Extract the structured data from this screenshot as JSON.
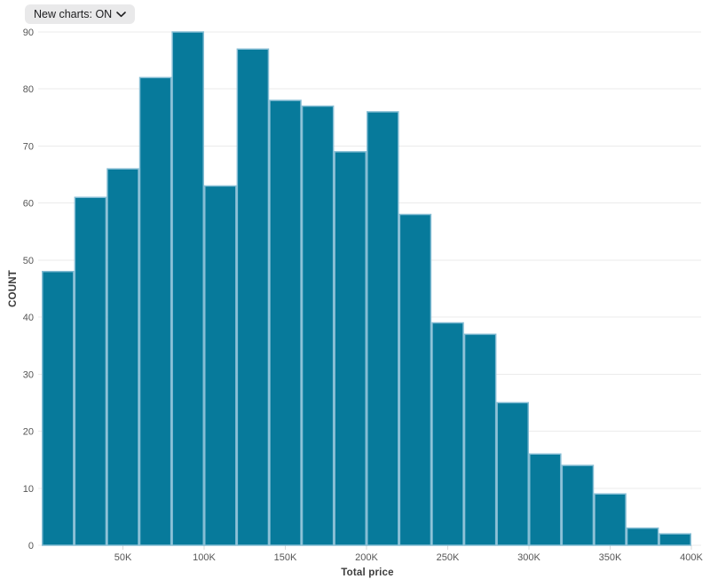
{
  "controls": {
    "new_charts_label": "New charts: ON",
    "chevron_icon": "chevron-down"
  },
  "chart_data": {
    "type": "bar",
    "subtype": "histogram",
    "title": "",
    "xlabel": "Total price",
    "ylabel": "COUNT",
    "x_bin_width": 20000,
    "bin_starts": [
      0,
      20000,
      40000,
      60000,
      80000,
      100000,
      120000,
      140000,
      160000,
      180000,
      200000,
      220000,
      240000,
      260000,
      280000,
      300000,
      320000,
      340000,
      360000,
      380000
    ],
    "values": [
      48,
      61,
      66,
      82,
      90,
      63,
      87,
      78,
      77,
      69,
      76,
      58,
      39,
      37,
      25,
      16,
      14,
      9,
      3,
      2
    ],
    "xlim": [
      0,
      400000
    ],
    "ylim": [
      0,
      90
    ],
    "yticks": [
      0,
      10,
      20,
      30,
      40,
      50,
      60,
      70,
      80,
      90
    ],
    "xticks": [
      {
        "value": 50000,
        "label": "50K"
      },
      {
        "value": 100000,
        "label": "100K"
      },
      {
        "value": 150000,
        "label": "150K"
      },
      {
        "value": 200000,
        "label": "200K"
      },
      {
        "value": 250000,
        "label": "250K"
      },
      {
        "value": 300000,
        "label": "300K"
      },
      {
        "value": 350000,
        "label": "350K"
      },
      {
        "value": 400000,
        "label": "400K"
      }
    ],
    "grid": "horizontal",
    "legend": "none",
    "colors": {
      "bar_fill": "#077a9b",
      "bar_border": "#85bdd4",
      "gridline": "#ebebeb",
      "tick_mark": "#d9d9d9",
      "tick_label": "#565656",
      "axis_title": "#3c3c3c",
      "background": "#ffffff"
    }
  }
}
